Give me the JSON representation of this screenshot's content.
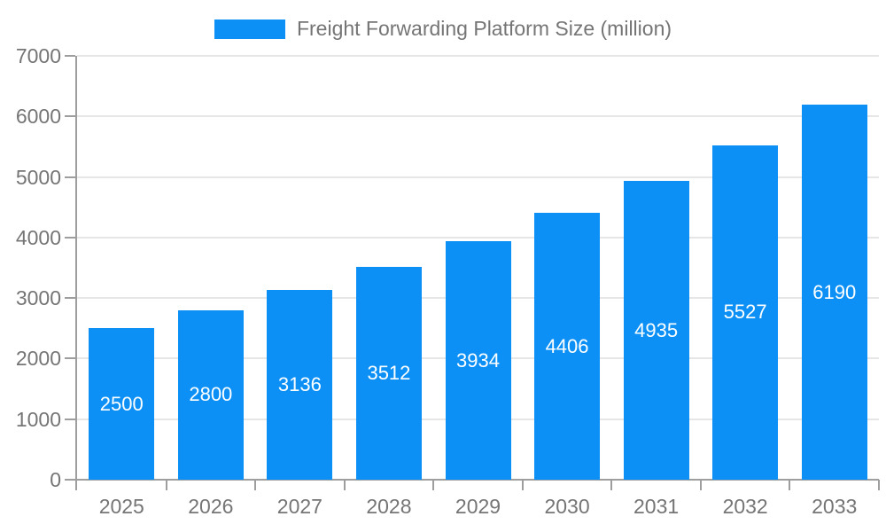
{
  "legend": {
    "label": "Freight Forwarding Platform Size (million)"
  },
  "chart_data": {
    "type": "bar",
    "title": "Freight Forwarding Platform Size (million)",
    "series_name": "Freight Forwarding Platform Size (million)",
    "categories": [
      "2025",
      "2026",
      "2027",
      "2028",
      "2029",
      "2030",
      "2031",
      "2032",
      "2033"
    ],
    "values": [
      2500,
      2800,
      3136,
      3512,
      3934,
      4406,
      4935,
      5527,
      6190
    ],
    "xlabel": "",
    "ylabel": "",
    "ylim": [
      0,
      7000
    ],
    "ytick_step": 1000,
    "ytick_labels": [
      "0",
      "1000",
      "2000",
      "3000",
      "4000",
      "5000",
      "6000",
      "7000"
    ],
    "grid": true,
    "legend_position": "top",
    "value_labels": "inside-center",
    "colors": {
      "bar": "#0c90f5",
      "grid": "#e6e6e6",
      "axis": "#9e9e9e",
      "tick_text": "#757575",
      "value_label": "#ffffff"
    }
  }
}
